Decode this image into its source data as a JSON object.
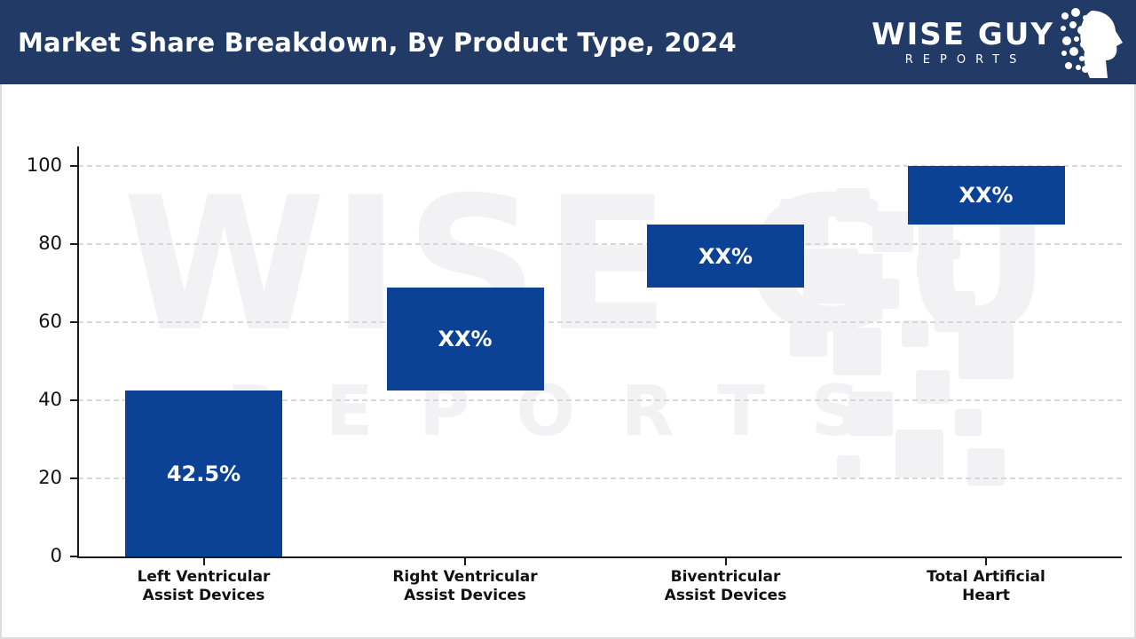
{
  "header": {
    "title": "Market Share Breakdown, By Product Type, 2024",
    "background_color": "#213a66"
  },
  "logo": {
    "line1": "WISE GUY",
    "line2": "REPORTS"
  },
  "watermark": {
    "line1": "WISE GU",
    "line2": "REPORTS"
  },
  "chart_data": {
    "type": "bar",
    "subtype": "waterfall",
    "title": "Market Share Breakdown, By Product Type, 2024",
    "categories": [
      [
        "Left Ventricular",
        "Assist Devices"
      ],
      [
        "Right Ventricular",
        "Assist Devices"
      ],
      [
        "Biventricular",
        "Assist Devices"
      ],
      [
        "Total Artificial",
        "Heart"
      ]
    ],
    "bar_labels": [
      "42.5%",
      "XX%",
      "XX%",
      "XX%"
    ],
    "segments": [
      {
        "start": 0,
        "end": 42.5
      },
      {
        "start": 42.5,
        "end": 68.8
      },
      {
        "start": 68.8,
        "end": 85.0
      },
      {
        "start": 85.0,
        "end": 100.0
      }
    ],
    "values": [
      42.5,
      26.3,
      16.2,
      15.0
    ],
    "yticks": [
      0,
      20,
      40,
      60,
      80,
      100
    ],
    "ylim": [
      0,
      105
    ],
    "grid": "horizontal-dashed",
    "legend": "none",
    "bar_color": "#0b4295",
    "bar_label_color": "#ffffff",
    "axis_color": "#1a1a1a",
    "grid_color": "#d8d8d8"
  }
}
